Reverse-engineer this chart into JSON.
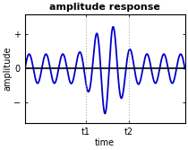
{
  "title": "amplitude response",
  "xlabel": "time",
  "ylabel": "amplitude",
  "bg_color": "#ffffff",
  "line_color": "#0000cc",
  "zero_line_color": "black",
  "t1": 0.38,
  "t2": 0.65,
  "base_amplitude": 0.32,
  "peak_amplitude": 1.0,
  "frequency": 9.5,
  "duration": 1.0,
  "ytick_labels": [
    "+",
    "0",
    "−"
  ],
  "xtick_labels": [
    "t1",
    "t2"
  ],
  "vline_color": "#aaaaaa",
  "line_width": 1.3
}
